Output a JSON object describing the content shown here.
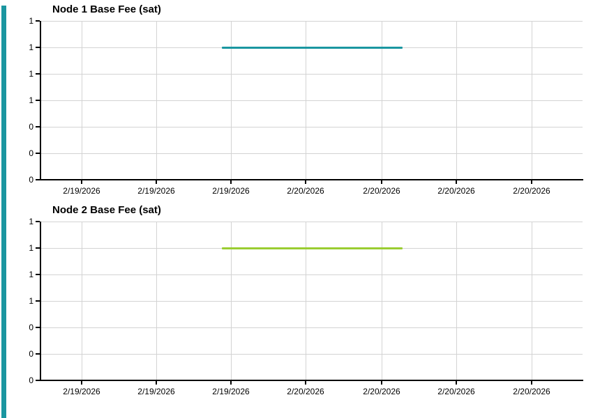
{
  "page": {
    "background": "#ffffff"
  },
  "accent_bar": {
    "color": "#1A96A0"
  },
  "chart_data": [
    {
      "type": "line",
      "title": "Node 1 Base Fee (sat)",
      "xlabel": "",
      "ylabel": "",
      "ylim": [
        0,
        1.2
      ],
      "y_ticks_values": [
        1.2,
        1.0,
        0.8,
        0.6,
        0.4,
        0.2,
        0
      ],
      "y_tick_labels": [
        "1",
        "1",
        "1",
        "1",
        "0",
        "0",
        "0"
      ],
      "x_tick_labels": [
        "2/19/2026",
        "2/19/2026",
        "2/19/2026",
        "2/20/2026",
        "2/20/2026",
        "2/20/2026",
        "2/20/2026"
      ],
      "grid": true,
      "legend": "none",
      "series": [
        {
          "name": "Node 1 base fee",
          "color": "#1A96A0",
          "value": 1,
          "shape": "constant-horizontal-segment",
          "x_start_frac": 0.3346,
          "x_end_frac": 0.668
        }
      ]
    },
    {
      "type": "line",
      "title": "Node 2 Base Fee (sat)",
      "xlabel": "",
      "ylabel": "",
      "ylim": [
        0,
        1.2
      ],
      "y_ticks_values": [
        1.2,
        1.0,
        0.8,
        0.6,
        0.4,
        0.2,
        0
      ],
      "y_tick_labels": [
        "1",
        "1",
        "1",
        "1",
        "0",
        "0",
        "0"
      ],
      "x_tick_labels": [
        "2/19/2026",
        "2/19/2026",
        "2/19/2026",
        "2/20/2026",
        "2/20/2026",
        "2/20/2026",
        "2/20/2026"
      ],
      "grid": true,
      "legend": "none",
      "series": [
        {
          "name": "Node 2 base fee",
          "color": "#9ACD32",
          "value": 1,
          "shape": "constant-horizontal-segment",
          "x_start_frac": 0.3346,
          "x_end_frac": 0.668
        }
      ]
    }
  ],
  "colors": {
    "gridline": "#d3d3d3",
    "axis": "#000000",
    "text": "#000000",
    "node1_line": "#1A96A0",
    "node2_line": "#9ACD32"
  }
}
